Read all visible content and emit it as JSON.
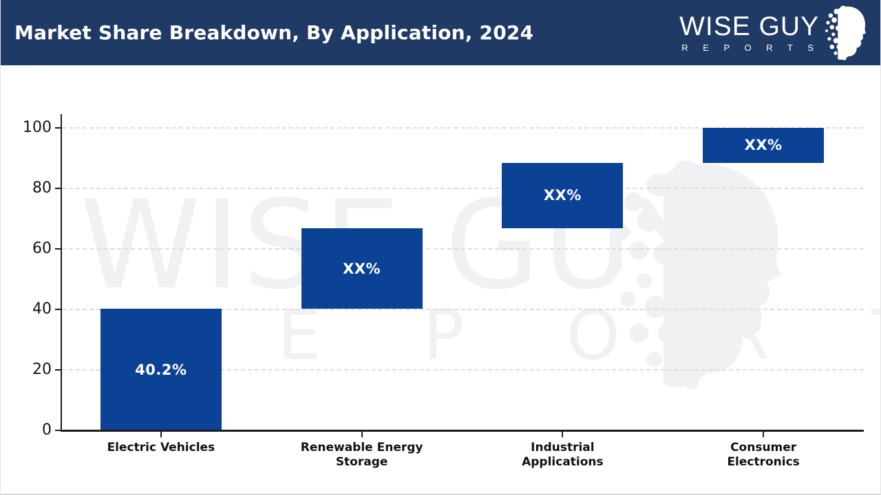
{
  "header": {
    "title": "Market Share Breakdown, By Application, 2024",
    "logo": {
      "name": "WISE GUY",
      "subtitle": "R E P O R T S"
    }
  },
  "watermark": {
    "line1": "WISE GUY",
    "line2": "R E P O R T S"
  },
  "colors": {
    "header_bg": "#203a66",
    "bar": "#0b4296",
    "axis": "#1c1c1c",
    "grid": "#dcdcdc",
    "watermark": "#f1f1f3",
    "bar_label_text": "#ffffff",
    "header_text": "#ffffff"
  },
  "chart_data": {
    "type": "bar",
    "subtype": "waterfall",
    "title": "Market Share Breakdown, By Application, 2024",
    "xlabel": "",
    "ylabel": "",
    "ylim": [
      0,
      100
    ],
    "yticks": [
      0,
      20,
      40,
      60,
      80,
      100
    ],
    "grid": "horizontal-dashed",
    "legend": null,
    "categories": [
      "Electric Vehicles",
      "Renewable Energy Storage",
      "Industrial Applications",
      "Consumer Electronics"
    ],
    "bars": [
      {
        "category": "Electric Vehicles",
        "category_lines": [
          "Electric Vehicles"
        ],
        "start": 0,
        "end": 40.2,
        "value": 40.2,
        "label": "40.2%"
      },
      {
        "category": "Renewable Energy Storage",
        "category_lines": [
          "Renewable Energy",
          "Storage"
        ],
        "start": 40.2,
        "end": 66.8,
        "value": 26.6,
        "label": "XX%"
      },
      {
        "category": "Industrial Applications",
        "category_lines": [
          "Industrial",
          "Applications"
        ],
        "start": 66.8,
        "end": 88.5,
        "value": 21.7,
        "label": "XX%"
      },
      {
        "category": "Consumer Electronics",
        "category_lines": [
          "Consumer",
          "Electronics"
        ],
        "start": 88.5,
        "end": 100,
        "value": 11.5,
        "label": "XX%"
      }
    ]
  }
}
